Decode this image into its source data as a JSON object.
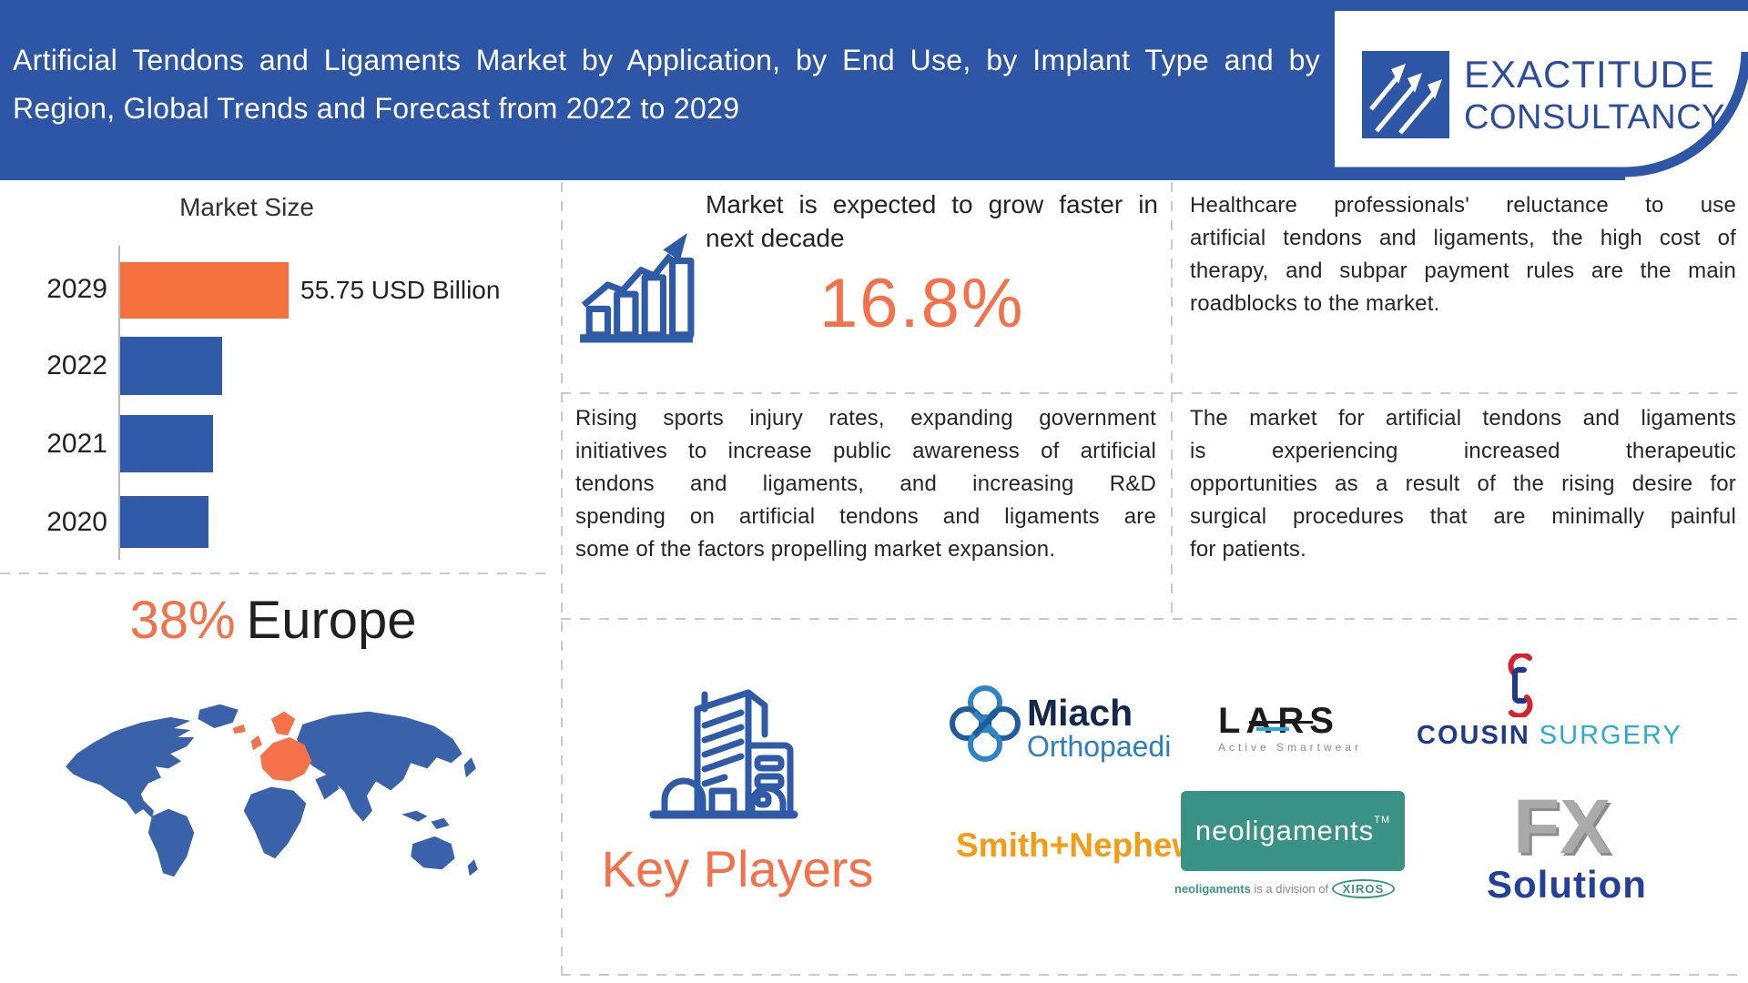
{
  "colors": {
    "header_blue": "#2d56a7",
    "bar_blue": "#2e5aa8",
    "map_blue": "#3a62ab",
    "accent_orange": "#f4714a",
    "bar_orange": "#f4713d",
    "smith_orange": "#f49c16",
    "neoligaments_teal": "#3a9186",
    "brand_navy": "#2c4c9c",
    "dash_gray": "#c9c9c9",
    "text_dark": "#26262a"
  },
  "header": {
    "title_lines": [
      "Artificial Tendons and Ligaments Market by Application, by End Use, by Implant Type and by",
      "Region, Global Trends and Forecast from 2022 to 2029"
    ]
  },
  "brand": {
    "line1": "EXACTITUDE",
    "line2": "CONSULTANCY"
  },
  "chart_data": {
    "type": "bar",
    "orientation": "horizontal",
    "title": "Market Size",
    "categories": [
      "2029",
      "2022",
      "2021",
      "2020"
    ],
    "values": [
      55.75,
      33.7,
      30.7,
      29.2
    ],
    "unit": "USD Billion",
    "value_label": "55.75 USD Billion",
    "highlight_category": "2029",
    "bar_colors": {
      "highlight": "#f4713d",
      "default": "#2e5aa8"
    },
    "xlim": [
      0,
      60
    ],
    "grid": false,
    "legend": false
  },
  "growth": {
    "heading_lines": [
      "Market is expected to grow faster in",
      "next decade"
    ],
    "value": "16.8%"
  },
  "region": {
    "share": "38%",
    "name": "Europe"
  },
  "insights": {
    "restraint_lines": [
      "Healthcare professionals' reluctance to use",
      "artificial tendons and ligaments, the high cost of",
      "therapy, and subpar payment rules are the main",
      "roadblocks to the market."
    ],
    "drivers_lines": [
      "Rising sports injury rates, expanding government",
      "initiatives to increase public awareness of artificial",
      "tendons and ligaments, and increasing R&D",
      "spending on artificial tendons and ligaments are",
      "some of the factors propelling market expansion."
    ],
    "opportunity_lines": [
      "The market for artificial tendons and ligaments",
      "is experiencing increased therapeutic",
      "opportunities as a result of the rising desire for",
      "surgical procedures that are minimally painful",
      "for patients."
    ]
  },
  "key_players": {
    "heading": "Key Players",
    "miach": {
      "name": "Miach",
      "sub": "Orthopaedi"
    },
    "lars": {
      "name": "LARS",
      "sub": "Active Smartwear"
    },
    "cousin": {
      "word1": "COUSIN",
      "word2": "SURGERY"
    },
    "smith": {
      "name": "Smith+Nephew"
    },
    "neoligaments": {
      "name": "neoligaments",
      "tm": "TM",
      "division_bold": "neoligaments",
      "division_text": " is a division of ",
      "xiros": "XIROS"
    },
    "fx": {
      "name": "FX",
      "sub": "Solution"
    }
  }
}
